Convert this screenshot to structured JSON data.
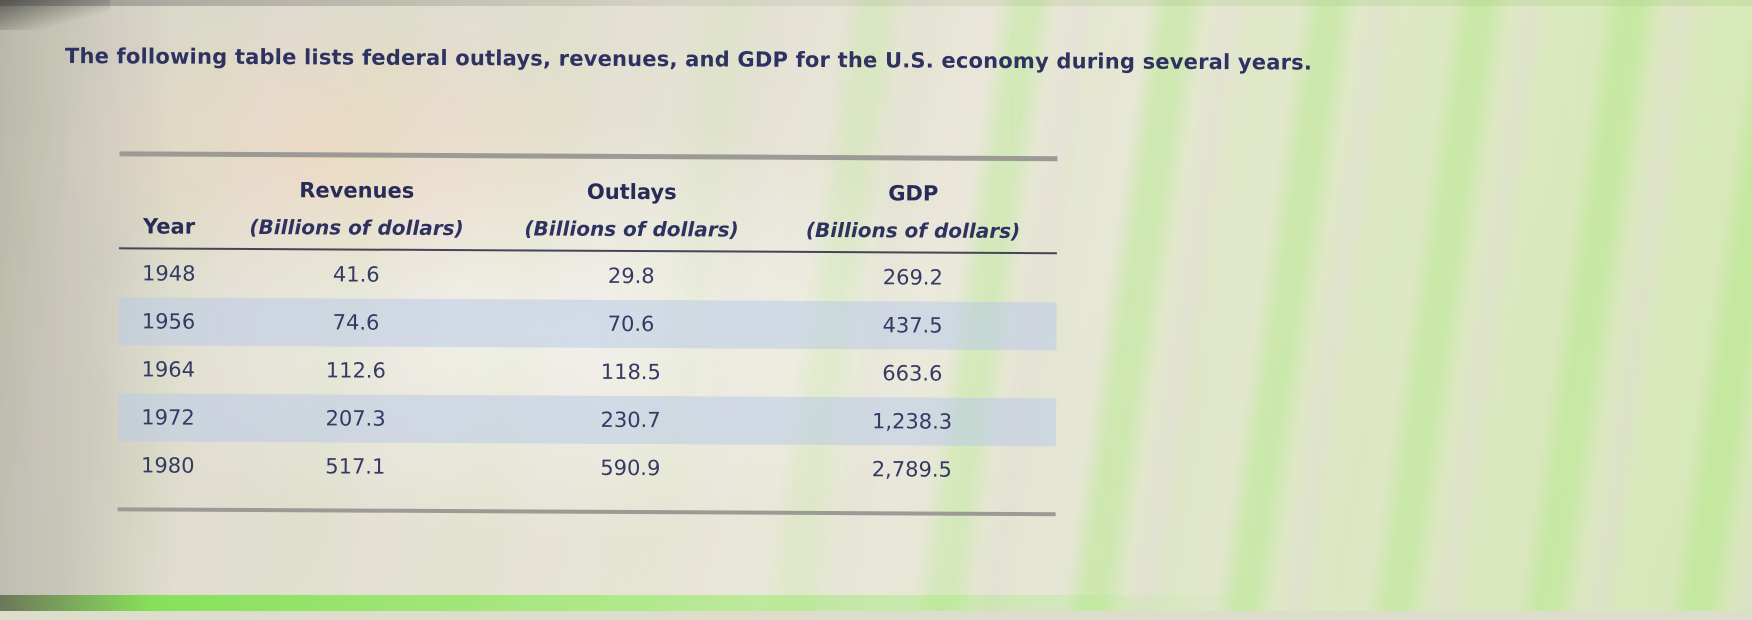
{
  "intro": "The following table lists federal outlays, revenues, and GDP for the U.S. economy during several years.",
  "table": {
    "columns": [
      {
        "label": "Year",
        "sublabel": ""
      },
      {
        "label": "Revenues",
        "sublabel": "(Billions of dollars)"
      },
      {
        "label": "Outlays",
        "sublabel": "(Billions of dollars)"
      },
      {
        "label": "GDP",
        "sublabel": "(Billions of dollars)"
      }
    ],
    "rows": [
      {
        "year": "1948",
        "revenues": "41.6",
        "outlays": "29.8",
        "gdp": "269.2"
      },
      {
        "year": "1956",
        "revenues": "74.6",
        "outlays": "70.6",
        "gdp": "437.5"
      },
      {
        "year": "1964",
        "revenues": "112.6",
        "outlays": "118.5",
        "gdp": "663.6"
      },
      {
        "year": "1972",
        "revenues": "207.3",
        "outlays": "230.7",
        "gdp": "1,238.3"
      },
      {
        "year": "1980",
        "revenues": "517.1",
        "outlays": "590.9",
        "gdp": "2,789.5"
      }
    ]
  },
  "colors": {
    "text": "#343a63",
    "header_text": "#272b58",
    "row_shade": "#bacbe8",
    "table_rule": "#9b9a94"
  }
}
